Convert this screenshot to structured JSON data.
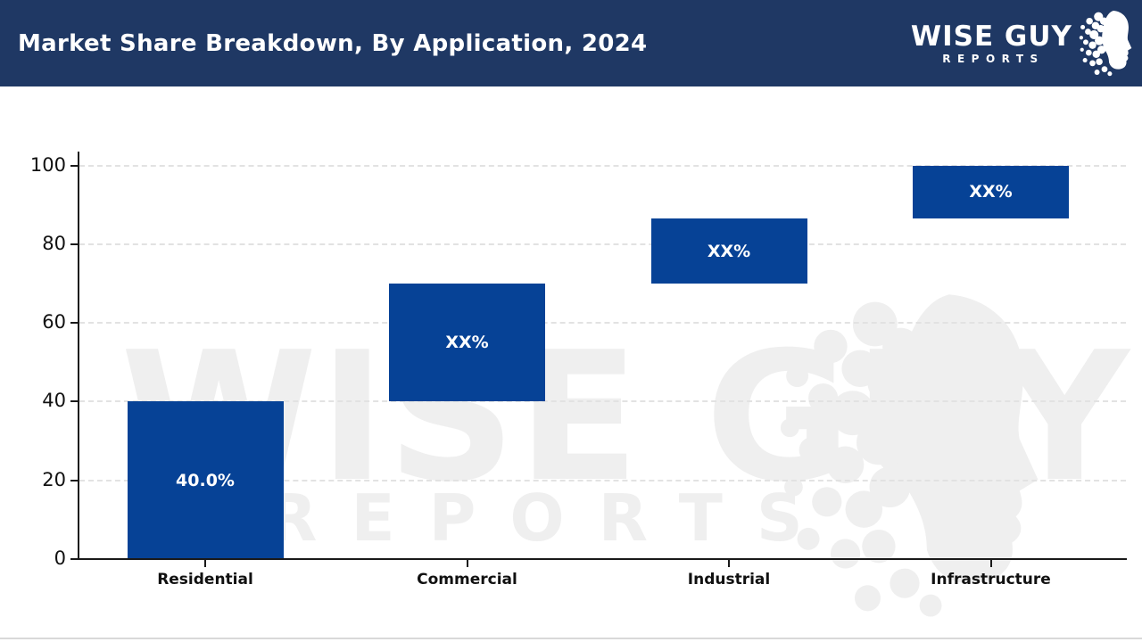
{
  "header": {
    "title": "Market Share Breakdown, By Application, 2024",
    "logo": {
      "brand": "WISE GUY",
      "sub": "REPORTS"
    }
  },
  "colors": {
    "header_bg": "#1f3864",
    "bar": "#064296",
    "grid": "#e2e2e2",
    "axis": "#1a1a1a",
    "watermark": "#efefef",
    "bar_label": "#ffffff"
  },
  "chart_data": {
    "type": "bar",
    "variant": "waterfall",
    "title": "Market Share Breakdown, By Application, 2024",
    "categories": [
      "Residential",
      "Commercial",
      "Industrial",
      "Infrastructure"
    ],
    "segments": [
      {
        "category": "Residential",
        "start": 0,
        "end": 40,
        "value": 40,
        "label": "40.0%"
      },
      {
        "category": "Commercial",
        "start": 40,
        "end": 70,
        "value": 30,
        "label": "XX%"
      },
      {
        "category": "Industrial",
        "start": 70,
        "end": 86.5,
        "value": 16.5,
        "label": "XX%"
      },
      {
        "category": "Infrastructure",
        "start": 86.5,
        "end": 100,
        "value": 13.5,
        "label": "XX%"
      }
    ],
    "yticks": [
      0,
      20,
      40,
      60,
      80,
      100
    ],
    "ylim": [
      0,
      105
    ],
    "xlabel": "",
    "ylabel": "",
    "grid": "horizontal-dashed",
    "legend": "none",
    "watermark_text": [
      "WISE GUY",
      "REPORTS"
    ]
  }
}
